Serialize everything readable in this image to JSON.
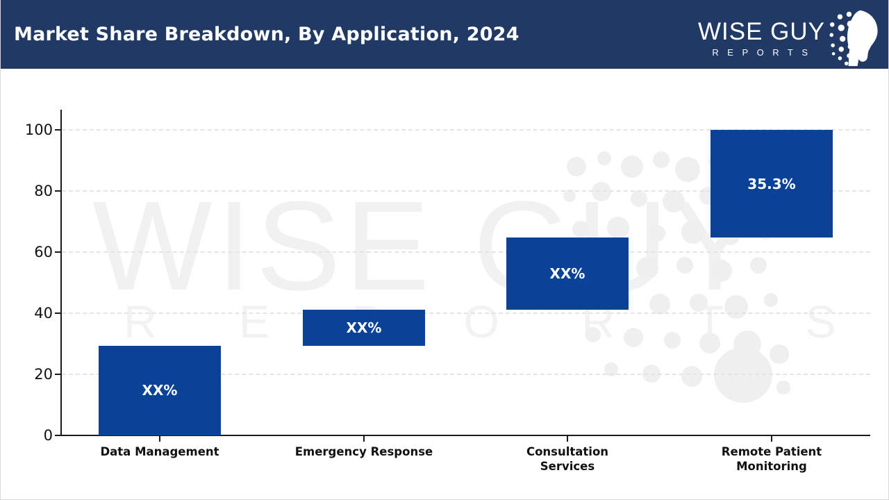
{
  "header": {
    "logo": {
      "line1": "WISE GUY",
      "line2": "REPORTS"
    }
  },
  "watermark": {
    "line1": "WISE GUY",
    "line2": "R E P O R T S"
  },
  "chart_data": {
    "type": "bar",
    "subtype": "waterfall-floating-segments",
    "title": "Market Share Breakdown, By Application, 2024",
    "categories": [
      "Data Management",
      "Emergency Response",
      "Consultation Services",
      "Remote Patient Monitoring"
    ],
    "category_lines": [
      [
        "Data Management"
      ],
      [
        "Emergency Response"
      ],
      [
        "Consultation",
        "Services"
      ],
      [
        "Remote Patient",
        "Monitoring"
      ]
    ],
    "segments": [
      {
        "category": "Data Management",
        "start": 0,
        "end": 29.4,
        "label": "XX%"
      },
      {
        "category": "Emergency Response",
        "start": 29.4,
        "end": 41.2,
        "label": "XX%"
      },
      {
        "category": "Consultation Services",
        "start": 41.2,
        "end": 64.7,
        "label": "XX%"
      },
      {
        "category": "Remote Patient Monitoring",
        "start": 64.7,
        "end": 100,
        "label": "35.3%"
      }
    ],
    "yticks": [
      0,
      20,
      40,
      60,
      80,
      100
    ],
    "ylim": [
      0,
      106.5
    ],
    "xlabel": "",
    "ylabel": "",
    "grid": "horizontal-dashed",
    "legend": "none",
    "colors": {
      "bar": "#0a4298",
      "header_bg": "#213965",
      "grid": "#e4e4e4",
      "axis": "#1a1a1a",
      "bar_label": "#ffffff",
      "watermark": "#f1f1f1"
    }
  }
}
